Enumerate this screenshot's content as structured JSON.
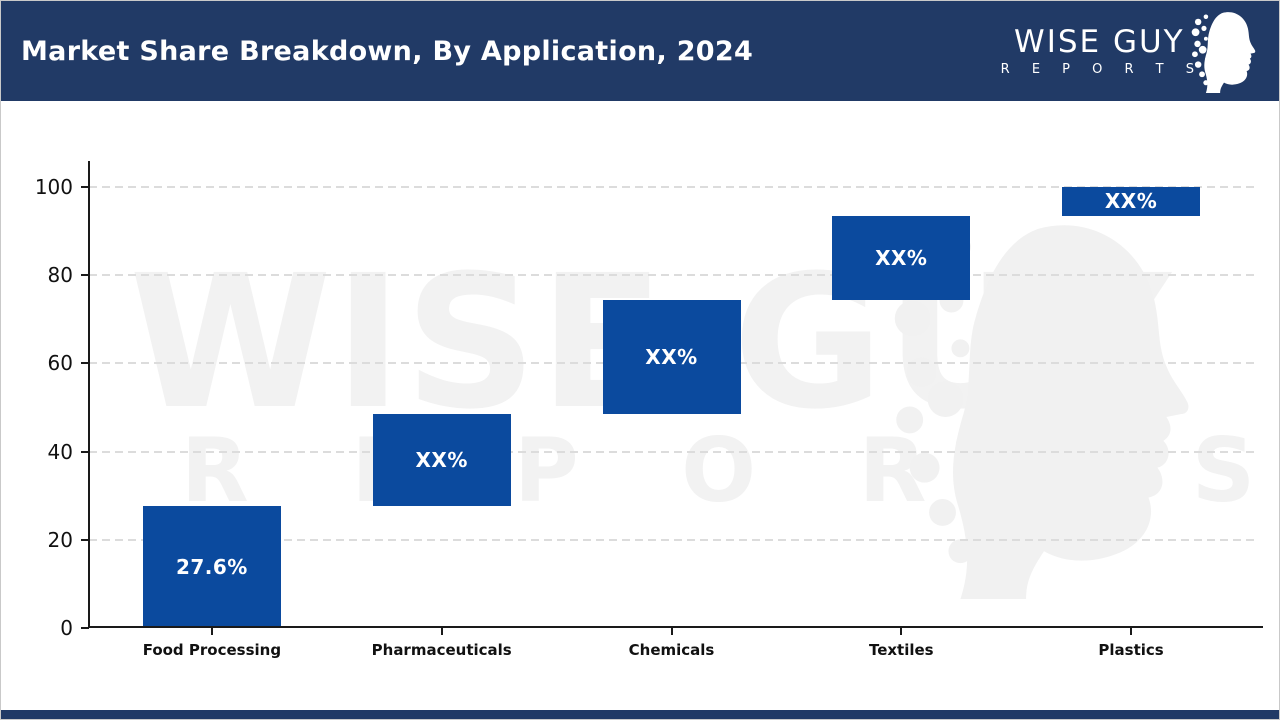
{
  "header": {
    "title": "Market Share Breakdown, By Application, 2024",
    "logo": {
      "line1": "WISE GUY",
      "line2": "R E P O R T S"
    }
  },
  "watermark": {
    "line1": "WISE GUY",
    "line2": "R E P O R T S"
  },
  "chart_data": {
    "type": "bar",
    "variant": "waterfall",
    "title": "Market Share Breakdown, By Application, 2024",
    "categories": [
      "Food Processing",
      "Pharmaceuticals",
      "Chemicals",
      "Textiles",
      "Plastics"
    ],
    "segments": [
      {
        "category": "Food Processing",
        "start": 0,
        "end": 27.6,
        "label": "27.6%"
      },
      {
        "category": "Pharmaceuticals",
        "start": 27.6,
        "end": 48.6,
        "label": "XX%"
      },
      {
        "category": "Chemicals",
        "start": 48.6,
        "end": 74.4,
        "label": "XX%"
      },
      {
        "category": "Textiles",
        "start": 74.4,
        "end": 93.5,
        "label": "XX%"
      },
      {
        "category": "Plastics",
        "start": 93.5,
        "end": 100,
        "label": "XX%"
      }
    ],
    "yticks": [
      0,
      20,
      40,
      60,
      80,
      100
    ],
    "ylim": [
      0,
      106
    ],
    "grid": "horizontal-dashed",
    "legend": "none",
    "bar_color": "#0b4a9e",
    "bar_label_color": "#ffffff"
  },
  "colors": {
    "header_bg": "#213a66",
    "footer_bg": "#213a66",
    "bar": "#0b4a9e",
    "grid": "#dcdcdc",
    "axis": "#1a1a1a",
    "watermark": "#f2f2f2",
    "title_text": "#ffffff"
  }
}
